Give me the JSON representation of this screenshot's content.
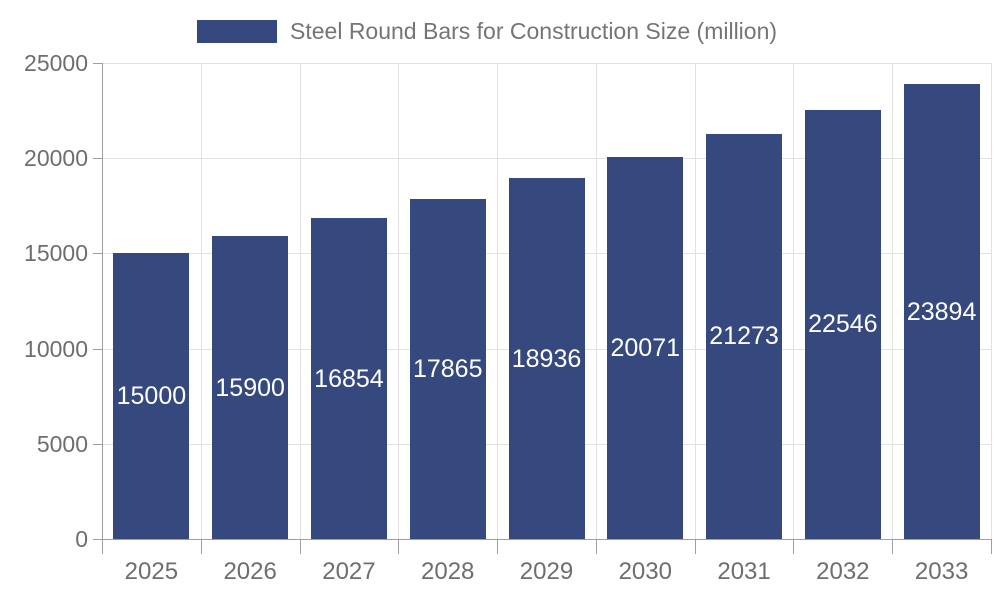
{
  "chart_data": {
    "type": "bar",
    "series_name": "Steel Round Bars for Construction Size (million)",
    "categories": [
      "2025",
      "2026",
      "2027",
      "2028",
      "2029",
      "2030",
      "2031",
      "2032",
      "2033"
    ],
    "values": [
      15000,
      15900,
      16854,
      17865,
      18936,
      20071,
      21273,
      22546,
      23894
    ],
    "xlabel": "",
    "ylabel": "",
    "ylim": [
      0,
      25000
    ],
    "yticks": [
      0,
      5000,
      10000,
      15000,
      20000,
      25000
    ],
    "grid": true,
    "legend_position": "top",
    "bar_value_labels": "inside-center",
    "colors": {
      "bar": "#36497E",
      "grid": "#e2e2e2",
      "axis": "#9e9e9e",
      "tick_text": "#6e6e6e",
      "legend_text": "#757575",
      "bar_label_text": "#ffffff",
      "background": "#ffffff"
    }
  }
}
